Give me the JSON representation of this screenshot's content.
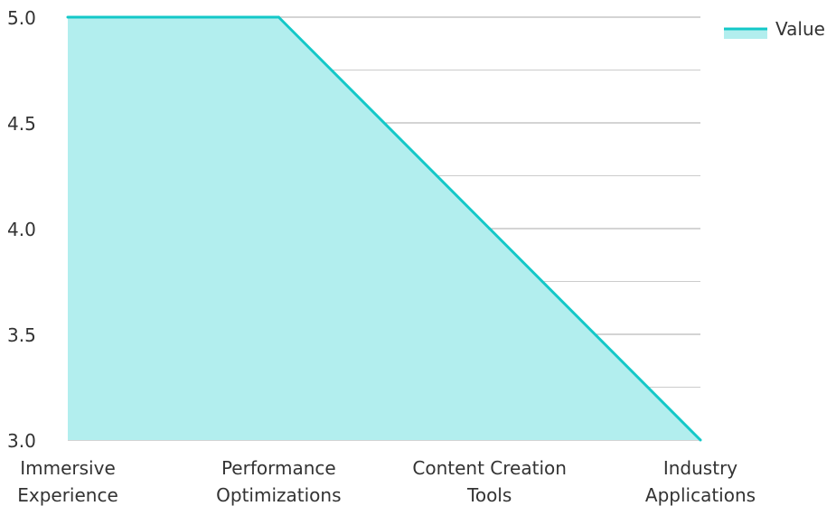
{
  "chart_data": {
    "type": "area",
    "categories": [
      [
        "Immersive",
        "Experience"
      ],
      [
        "Performance",
        "Optimizations"
      ],
      [
        "Content Creation",
        "Tools"
      ],
      [
        "Industry",
        "Applications"
      ]
    ],
    "series": [
      {
        "name": "Value",
        "values": [
          5.0,
          5.0,
          4.0,
          3.0
        ]
      }
    ],
    "ylim": [
      3.0,
      5.0
    ],
    "yticks": [
      "3.0",
      "3.5",
      "4.0",
      "4.5",
      "5.0"
    ],
    "grid": true,
    "legend_position": "top-right",
    "colors": {
      "line": "#14c8c8",
      "fill": "#b2eeee",
      "grid": "#cccccc",
      "major_grid": "#aaaaaa"
    }
  }
}
